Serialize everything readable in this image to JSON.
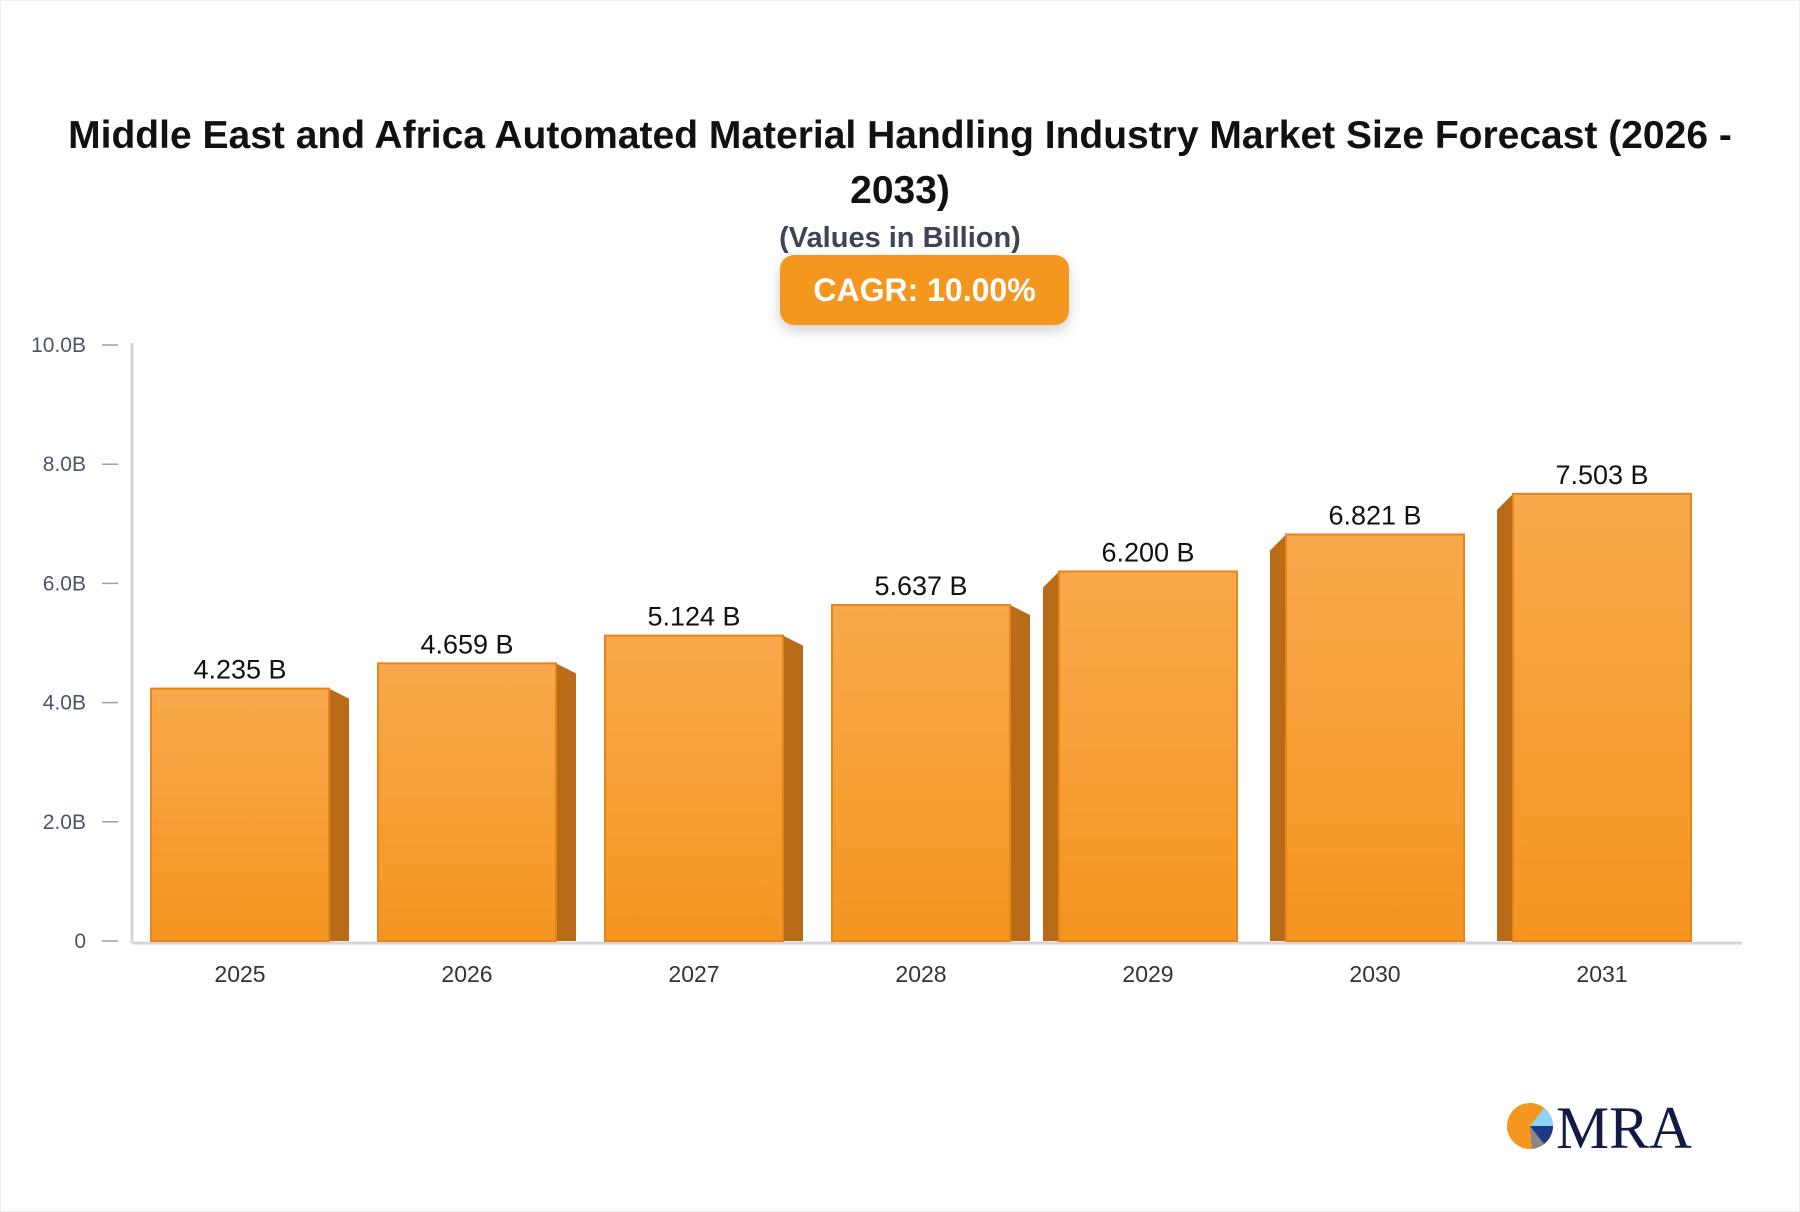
{
  "chart_data": {
    "type": "bar",
    "title": "Middle East and Africa Automated Material Handling Industry Market Size Forecast (2026 - 2033)",
    "subtitle": "(Values in Billion)",
    "badge": "CAGR: 10.00%",
    "categories": [
      "2025",
      "2026",
      "2027",
      "2028",
      "2029",
      "2030",
      "2031"
    ],
    "values": [
      4.235,
      4.659,
      5.124,
      5.637,
      6.2,
      6.821,
      7.503
    ],
    "data_labels": [
      "4.235 B",
      "4.659 B",
      "5.124 B",
      "5.637 B",
      "6.200 B",
      "6.821 B",
      "7.503 B"
    ],
    "ylim": [
      0,
      10
    ],
    "yticks": [
      0,
      2,
      4,
      6,
      8,
      10
    ],
    "ytick_labels": [
      "0",
      "2.0B",
      "4.0B",
      "6.0B",
      "8.0B",
      "10.0B"
    ],
    "grid": false,
    "colors": {
      "bar_top": "#f8a94c",
      "bar_bottom": "#f59520",
      "bar_side": "#b96c18",
      "badge": "#f5961f",
      "axis": "#d3d5db"
    }
  },
  "logo": {
    "text": "MRA"
  }
}
